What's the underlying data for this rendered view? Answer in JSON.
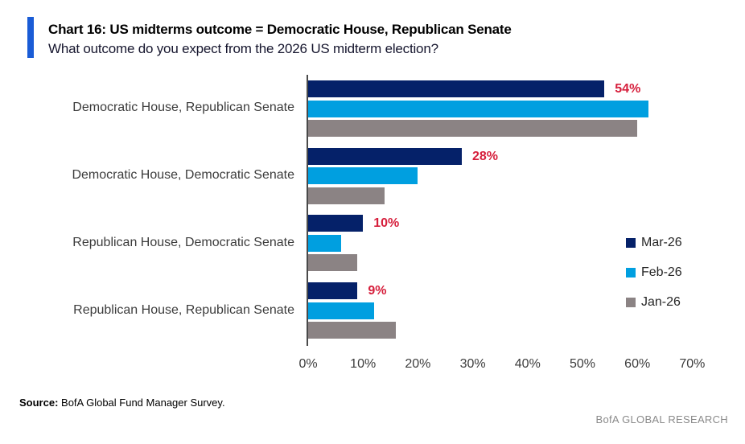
{
  "chart_data": {
    "type": "bar",
    "orientation": "horizontal",
    "title": "Chart 16: US midterms outcome = Democratic House, Republican Senate",
    "subtitle": "What outcome do you expect from the 2026 US midterm election?",
    "categories": [
      "Democratic House, Republican Senate",
      "Democratic House, Democratic Senate",
      "Republican House, Democratic Senate",
      "Republican House, Republican Senate"
    ],
    "series": [
      {
        "name": "Mar-26",
        "color": "#052169",
        "values": [
          54,
          28,
          10,
          9
        ]
      },
      {
        "name": "Feb-26",
        "color": "#009fe0",
        "values": [
          62,
          20,
          6,
          12
        ]
      },
      {
        "name": "Jan-26",
        "color": "#8b8384",
        "values": [
          60,
          14,
          9,
          16
        ]
      }
    ],
    "data_labels": {
      "on_series": "Mar-26",
      "values": [
        "54%",
        "28%",
        "10%",
        "9%"
      ],
      "color": "#d61f3c"
    },
    "xticks": [
      "0%",
      "10%",
      "20%",
      "30%",
      "40%",
      "50%",
      "60%",
      "70%"
    ],
    "xlim": [
      0,
      70
    ],
    "grid": false,
    "legend_position": "right"
  },
  "footer": {
    "source_label": "Source:",
    "source_text": " BofA Global Fund Manager Survey.",
    "brand": "BofA GLOBAL RESEARCH"
  },
  "colors": {
    "accent_blue": "#1a5cd6",
    "label_red": "#d61f3c",
    "navy": "#052169",
    "light_blue": "#009fe0",
    "taupe_gray": "#8b8384"
  }
}
